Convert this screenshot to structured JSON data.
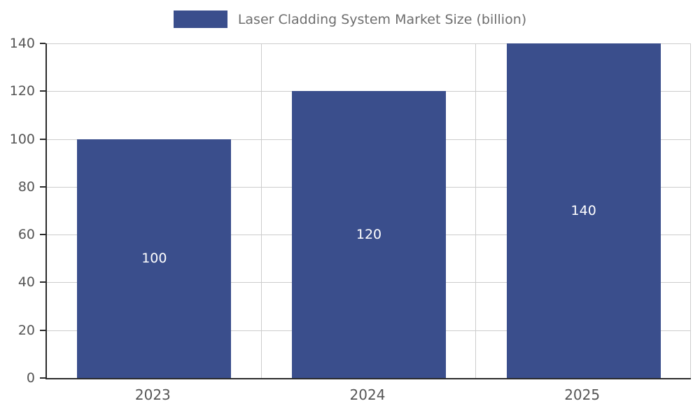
{
  "chart_data": {
    "type": "bar",
    "title": "Laser Cladding System Market Size (billion)",
    "categories": [
      "2023",
      "2024",
      "2025"
    ],
    "values": [
      100,
      120,
      140
    ],
    "value_labels": [
      "100",
      "120",
      "140"
    ],
    "ylim": [
      0,
      140
    ],
    "yticks": [
      0,
      20,
      40,
      60,
      80,
      100,
      120,
      140
    ],
    "grid": true,
    "legend_position": "top-center",
    "colors": {
      "bar": "#3A4E8C",
      "value_label": "#ffffff",
      "axis": "#2b2b2b",
      "grid": "#cccccc",
      "tick_label": "#555555",
      "legend_text": "#6e6e6e",
      "background": "#ffffff"
    }
  }
}
